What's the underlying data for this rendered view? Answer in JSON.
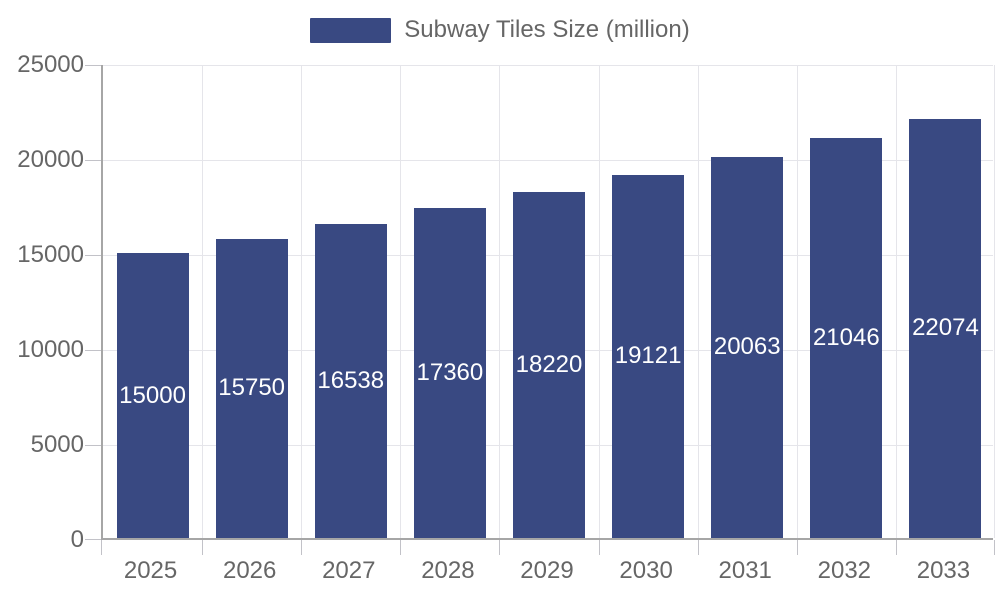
{
  "legend": {
    "label": "Subway Tiles Size (million)"
  },
  "colors": {
    "bar": "#394982",
    "axis": "#a6a6a6",
    "grid": "#e5e5ea",
    "tick": "#c2c2c8",
    "tick_text": "#666666",
    "value_text": "#ffffff",
    "background": "#ffffff"
  },
  "chart_data": {
    "type": "bar",
    "title": "",
    "series_name": "Subway Tiles Size (million)",
    "categories": [
      "2025",
      "2026",
      "2027",
      "2028",
      "2029",
      "2030",
      "2031",
      "2032",
      "2033"
    ],
    "values": [
      15000,
      15750,
      16538,
      17360,
      18220,
      19121,
      20063,
      21046,
      22074
    ],
    "xlabel": "",
    "ylabel": "",
    "ylim": [
      0,
      25000
    ],
    "yticks": [
      0,
      5000,
      10000,
      15000,
      20000,
      25000
    ],
    "grid": true,
    "legend_position": "top-center",
    "value_labels": "inside-center"
  }
}
